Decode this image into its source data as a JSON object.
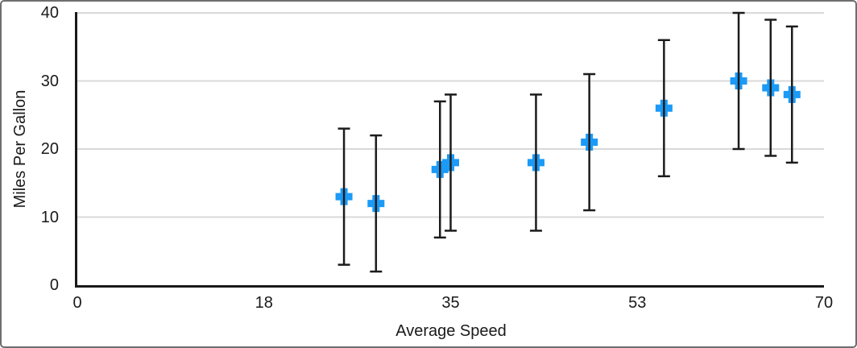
{
  "chart_data": {
    "type": "scatter",
    "title": "",
    "xlabel": "Average Speed",
    "ylabel": "Miles Per Gallon",
    "xlim": [
      0,
      70
    ],
    "ylim": [
      0,
      40
    ],
    "grid": "horizontal-only",
    "legend": "none",
    "x_ticks": [
      {
        "label": "0",
        "value": 0
      },
      {
        "label": "18",
        "value": 17.5
      },
      {
        "label": "35",
        "value": 35
      },
      {
        "label": "53",
        "value": 52.5
      },
      {
        "label": "70",
        "value": 70
      }
    ],
    "y_ticks": [
      {
        "label": "0",
        "value": 0
      },
      {
        "label": "10",
        "value": 10
      },
      {
        "label": "20",
        "value": 20
      },
      {
        "label": "30",
        "value": 30
      },
      {
        "label": "40",
        "value": 40
      }
    ],
    "y_gridlines": [
      10,
      20,
      30,
      40
    ],
    "series": [
      {
        "name": "Miles Per Gallon",
        "marker": "plus",
        "marker_color": "#1B9AF7",
        "error_bar": {
          "type": "fixed",
          "value": 10,
          "direction": "both",
          "color": "#1C1C1C"
        },
        "points": [
          {
            "x": 25,
            "y": 13
          },
          {
            "x": 28,
            "y": 12
          },
          {
            "x": 34,
            "y": 17
          },
          {
            "x": 35,
            "y": 18
          },
          {
            "x": 43,
            "y": 18
          },
          {
            "x": 48,
            "y": 21
          },
          {
            "x": 55,
            "y": 26
          },
          {
            "x": 62,
            "y": 30
          },
          {
            "x": 65,
            "y": 29
          },
          {
            "x": 67,
            "y": 28
          }
        ]
      }
    ]
  },
  "colors": {
    "axis": "#1A1A1A",
    "gridline": "#D9D9D9",
    "text": "#1A1A1A",
    "marker": "#1B9AF7",
    "error_bar": "#1C1C1C",
    "frame_border": "#6E6E70",
    "background": "#FFFFFF"
  }
}
